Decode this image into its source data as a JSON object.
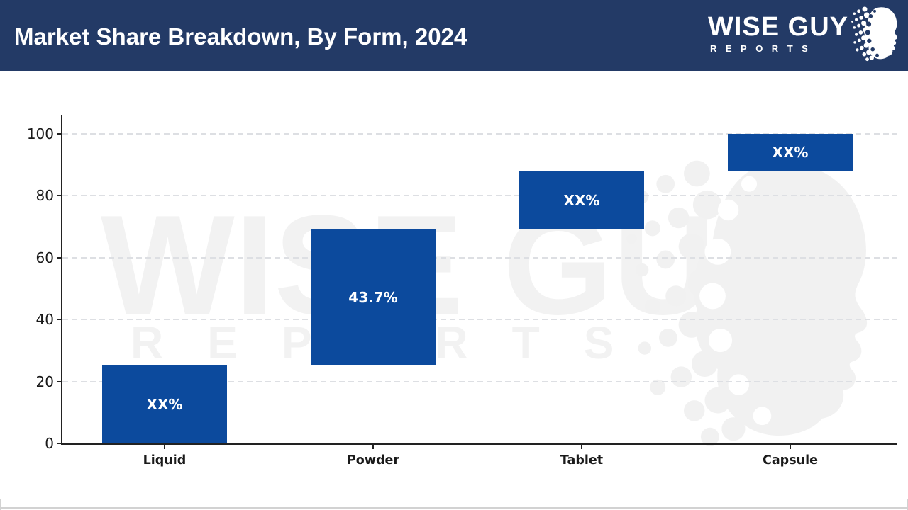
{
  "header": {
    "title": "Market Share Breakdown, By Form, 2024",
    "logo": {
      "wordmark": "WISE GUY",
      "subtext": "REPORTS"
    }
  },
  "watermark": {
    "wordmark": "WISE GUY",
    "subtext": "REPORTS"
  },
  "chart_data": {
    "type": "bar",
    "subtype": "floating-segment-waterfall",
    "title": "Market Share Breakdown, By Form, 2024",
    "categories": [
      "Liquid",
      "Powder",
      "Tablet",
      "Capsule"
    ],
    "segments": [
      {
        "category": "Liquid",
        "start": 0,
        "end": 25.3,
        "label": "XX%"
      },
      {
        "category": "Powder",
        "start": 25.3,
        "end": 69.0,
        "label": "43.7%"
      },
      {
        "category": "Tablet",
        "start": 69.0,
        "end": 88.0,
        "label": "XX%"
      },
      {
        "category": "Capsule",
        "start": 88.0,
        "end": 100.0,
        "label": "XX%"
      }
    ],
    "y_ticks": [
      0,
      20,
      40,
      60,
      80,
      100
    ],
    "ylim": [
      0,
      106
    ],
    "xlabel": "",
    "ylabel": "",
    "grid": "horizontal-dashed",
    "legend": "none"
  },
  "colors": {
    "header_bg": "#233a66",
    "bar_fill": "#0c4a9d",
    "bar_label_text": "#ffffff",
    "axis_text": "#1a1a1a",
    "gridline": "#dddfe3",
    "background": "#ffffff",
    "watermark": "#f2f2f2",
    "bottom_line": "#d2d2d2"
  }
}
